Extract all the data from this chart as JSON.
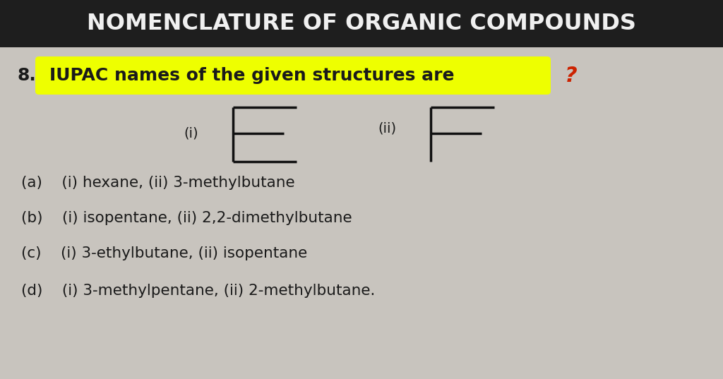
{
  "title": "NOMENCLATURE OF ORGANIC COMPOUNDS",
  "title_bg": "#1e1e1e",
  "title_color": "#f0f0f0",
  "question_number": "8.",
  "question_text": "IUPAC names of the given structures are",
  "question_highlight": "#eeff00",
  "question_mark": "?",
  "question_mark_color": "#cc2200",
  "bg_color": "#c8c4be",
  "options_a": "(a)    (i) hexane, (ii) 3-methylbutane",
  "options_b": "(b)    (i) isopentane, (ii) 2,2-dimethylbutane",
  "options_c": "(c)    (i) 3-ethylbutane, (ii) isopentane",
  "options_d": "(d)    (i) 3-methylpentane, (ii) 2-methylbutane.",
  "text_color": "#1a1a1a",
  "line_color": "#111111"
}
